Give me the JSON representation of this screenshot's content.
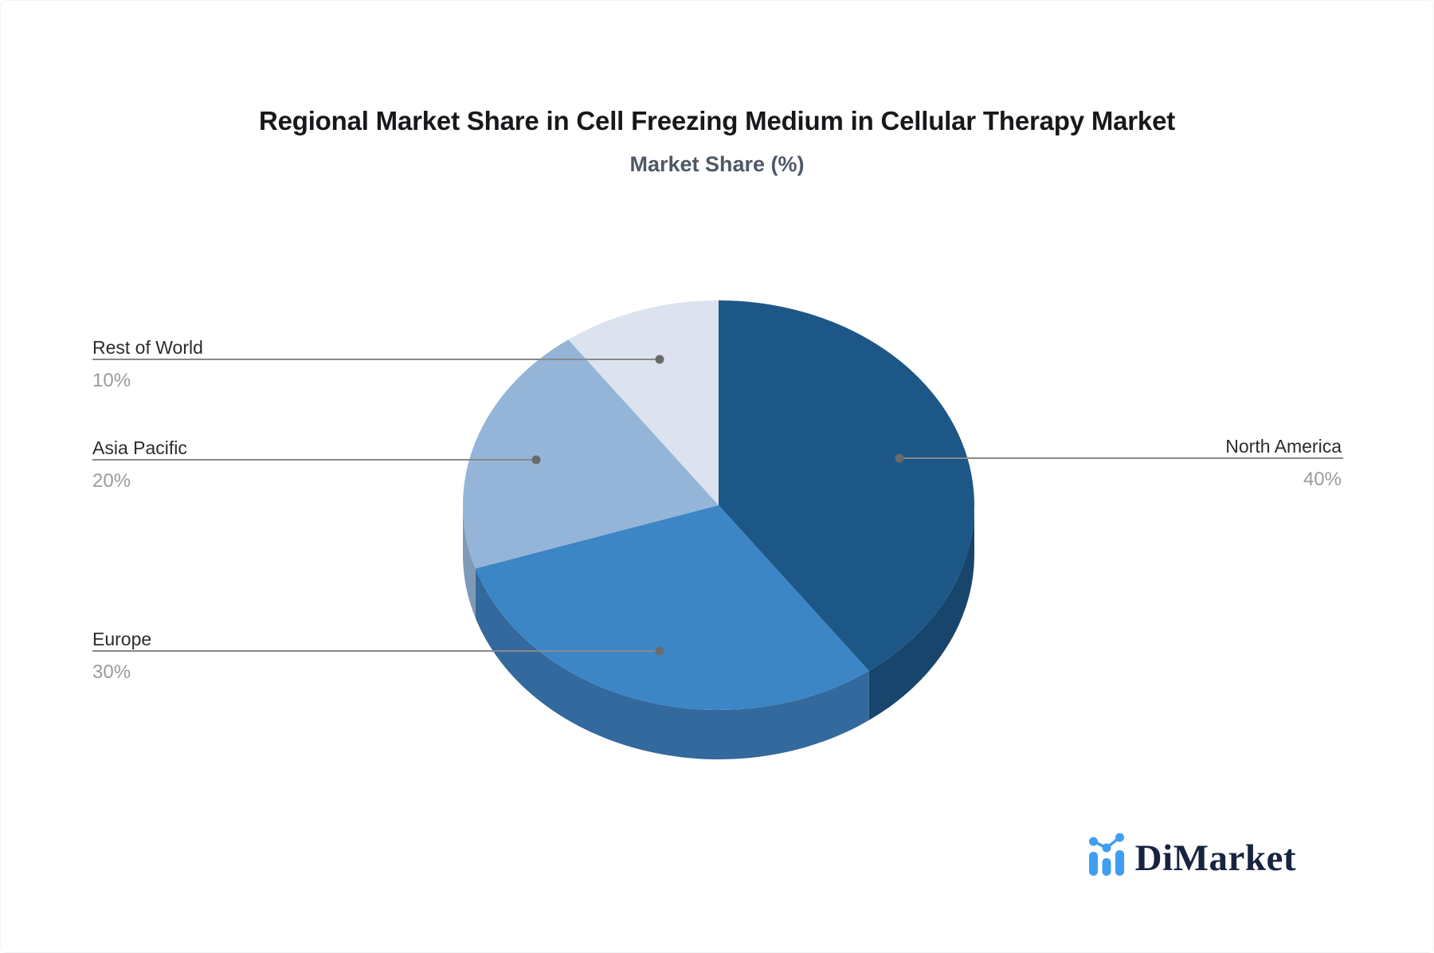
{
  "title": "Regional Market Share in Cell Freezing Medium in Cellular Therapy Market",
  "subtitle": "Market Share (%)",
  "brand": {
    "name": "DiMarket",
    "icon": "bar-chart-trend-icon",
    "icon_color": "#3f9ef2",
    "text_color": "#172440"
  },
  "chart_data": {
    "type": "pie",
    "style": "3d",
    "title": "Regional Market Share in Cell Freezing Medium in Cellular Therapy Market",
    "unit_label": "Market Share (%)",
    "start_angle_deg": 0,
    "direction": "clockwise",
    "total": 100,
    "slices": [
      {
        "name": "North America",
        "value": 40,
        "value_label": "40%",
        "color": "#1d5787",
        "side_color": "#17456b",
        "label_side": "right"
      },
      {
        "name": "Europe",
        "value": 30,
        "value_label": "30%",
        "color": "#3d86c6",
        "side_color": "#33699c",
        "label_side": "left"
      },
      {
        "name": "Asia Pacific",
        "value": 20,
        "value_label": "20%",
        "color": "#94b5d8",
        "side_color": "#7e9ab6",
        "label_side": "left"
      },
      {
        "name": "Rest of World",
        "value": 10,
        "value_label": "10%",
        "color": "#dce3ee",
        "side_color": "#c2cada",
        "label_side": "left"
      }
    ],
    "leader_line_color": "#898989",
    "leader_dot_color": "#6a6a6a",
    "legend_position": "none",
    "grid": false
  }
}
